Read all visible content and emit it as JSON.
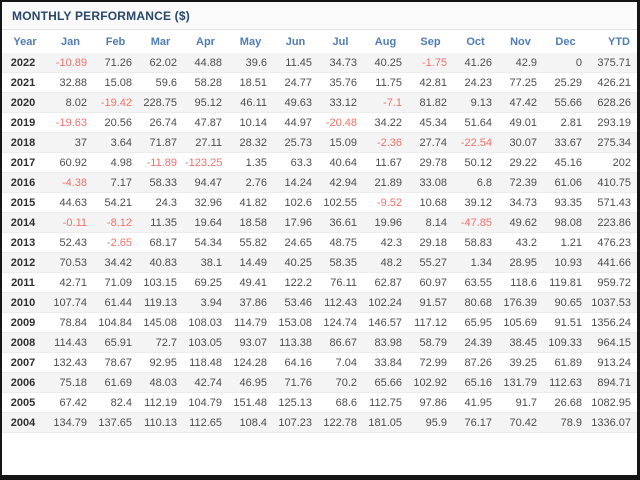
{
  "title": "MONTHLY PERFORMANCE ($)",
  "colors": {
    "title_text": "#29476b",
    "header_text": "#4e7cb6",
    "value_text": "#4d4d4d",
    "negative_text": "#f0716b",
    "stripe_bg": "#f4f4f4",
    "frame_border": "#151515"
  },
  "chart_data": {
    "type": "table",
    "title": "MONTHLY PERFORMANCE ($)",
    "unit": "$",
    "columns": [
      "Year",
      "Jan",
      "Feb",
      "Mar",
      "Apr",
      "May",
      "Jun",
      "Jul",
      "Aug",
      "Sep",
      "Oct",
      "Nov",
      "Dec",
      "YTD"
    ],
    "rows": [
      [
        "2022",
        "-10.89",
        "71.26",
        "62.02",
        "44.88",
        "39.6",
        "11.45",
        "34.73",
        "40.25",
        "-1.75",
        "41.26",
        "42.9",
        "0",
        "375.71"
      ],
      [
        "2021",
        "32.88",
        "15.08",
        "59.6",
        "58.28",
        "18.51",
        "24.77",
        "35.76",
        "11.75",
        "42.81",
        "24.23",
        "77.25",
        "25.29",
        "426.21"
      ],
      [
        "2020",
        "8.02",
        "-19.42",
        "228.75",
        "95.12",
        "46.11",
        "49.63",
        "33.12",
        "-7.1",
        "81.82",
        "9.13",
        "47.42",
        "55.66",
        "628.26"
      ],
      [
        "2019",
        "-19.63",
        "20.56",
        "26.74",
        "47.87",
        "10.14",
        "44.97",
        "-20.48",
        "34.22",
        "45.34",
        "51.64",
        "49.01",
        "2.81",
        "293.19"
      ],
      [
        "2018",
        "37",
        "3.64",
        "71.87",
        "27.11",
        "28.32",
        "25.73",
        "15.09",
        "-2.36",
        "27.74",
        "-22.54",
        "30.07",
        "33.67",
        "275.34"
      ],
      [
        "2017",
        "60.92",
        "4.98",
        "-11.89",
        "-123.25",
        "1.35",
        "63.3",
        "40.64",
        "11.67",
        "29.78",
        "50.12",
        "29.22",
        "45.16",
        "202"
      ],
      [
        "2016",
        "-4.38",
        "7.17",
        "58.33",
        "94.47",
        "2.76",
        "14.24",
        "42.94",
        "21.89",
        "33.08",
        "6.8",
        "72.39",
        "61.06",
        "410.75"
      ],
      [
        "2015",
        "44.63",
        "54.21",
        "24.3",
        "32.96",
        "41.82",
        "102.6",
        "102.55",
        "-9.52",
        "10.68",
        "39.12",
        "34.73",
        "93.35",
        "571.43"
      ],
      [
        "2014",
        "-0.11",
        "-8.12",
        "11.35",
        "19.64",
        "18.58",
        "17.96",
        "36.61",
        "19.96",
        "8.14",
        "-47.85",
        "49.62",
        "98.08",
        "223.86"
      ],
      [
        "2013",
        "52.43",
        "-2.65",
        "68.17",
        "54.34",
        "55.82",
        "24.65",
        "48.75",
        "42.3",
        "29.18",
        "58.83",
        "43.2",
        "1.21",
        "476.23"
      ],
      [
        "2012",
        "70.53",
        "34.42",
        "40.83",
        "38.1",
        "14.49",
        "40.25",
        "58.35",
        "48.2",
        "55.27",
        "1.34",
        "28.95",
        "10.93",
        "441.66"
      ],
      [
        "2011",
        "42.71",
        "71.09",
        "103.15",
        "69.25",
        "49.41",
        "122.2",
        "76.11",
        "62.87",
        "60.97",
        "63.55",
        "118.6",
        "119.81",
        "959.72"
      ],
      [
        "2010",
        "107.74",
        "61.44",
        "119.13",
        "3.94",
        "37.86",
        "53.46",
        "112.43",
        "102.24",
        "91.57",
        "80.68",
        "176.39",
        "90.65",
        "1037.53"
      ],
      [
        "2009",
        "78.84",
        "104.84",
        "145.08",
        "108.03",
        "114.79",
        "153.08",
        "124.74",
        "146.57",
        "117.12",
        "65.95",
        "105.69",
        "91.51",
        "1356.24"
      ],
      [
        "2008",
        "114.43",
        "65.91",
        "72.7",
        "103.05",
        "93.07",
        "113.38",
        "86.67",
        "83.98",
        "58.79",
        "24.39",
        "38.45",
        "109.33",
        "964.15"
      ],
      [
        "2007",
        "132.43",
        "78.67",
        "92.95",
        "118.48",
        "124.28",
        "64.16",
        "7.04",
        "33.84",
        "72.99",
        "87.26",
        "39.25",
        "61.89",
        "913.24"
      ],
      [
        "2006",
        "75.18",
        "61.69",
        "48.03",
        "42.74",
        "46.95",
        "71.76",
        "70.2",
        "65.66",
        "102.92",
        "65.16",
        "131.79",
        "112.63",
        "894.71"
      ],
      [
        "2005",
        "67.42",
        "82.4",
        "112.19",
        "104.79",
        "151.48",
        "125.13",
        "68.6",
        "112.75",
        "97.86",
        "41.95",
        "91.7",
        "26.68",
        "1082.95"
      ],
      [
        "2004",
        "134.79",
        "137.65",
        "110.13",
        "112.65",
        "108.4",
        "107.23",
        "122.78",
        "181.05",
        "95.9",
        "76.17",
        "70.42",
        "78.9",
        "1336.07"
      ]
    ]
  }
}
